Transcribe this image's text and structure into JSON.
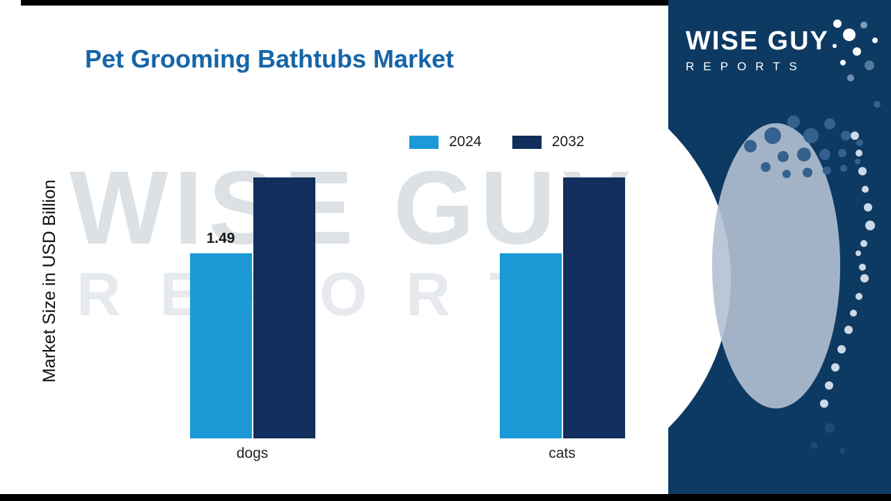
{
  "logo": {
    "name": "WISE GUY",
    "sub": "REPORTS"
  },
  "watermark": {
    "line1": "WISE GUY",
    "line2": "REPORTS"
  },
  "colors": {
    "title": "#1565a9",
    "panel": "#0d3a63",
    "series_2024": "#1b9ad5",
    "series_2032": "#112e5c",
    "top_bottom_bars": "#000000"
  },
  "chart_data": {
    "type": "bar",
    "title": "Pet Grooming Bathtubs Market",
    "ylabel": "Market Size in USD Billion",
    "categories": [
      "dogs",
      "cats"
    ],
    "series": [
      {
        "name": "2024",
        "color": "#1b9ad5",
        "values": [
          1.49,
          1.49
        ],
        "labels": [
          "1.49",
          ""
        ]
      },
      {
        "name": "2032",
        "color": "#112e5c",
        "values": [
          2.1,
          2.1
        ],
        "labels": [
          "",
          ""
        ]
      }
    ],
    "ylim": [
      0,
      2.4
    ],
    "grid": false,
    "legend_position": "top"
  }
}
